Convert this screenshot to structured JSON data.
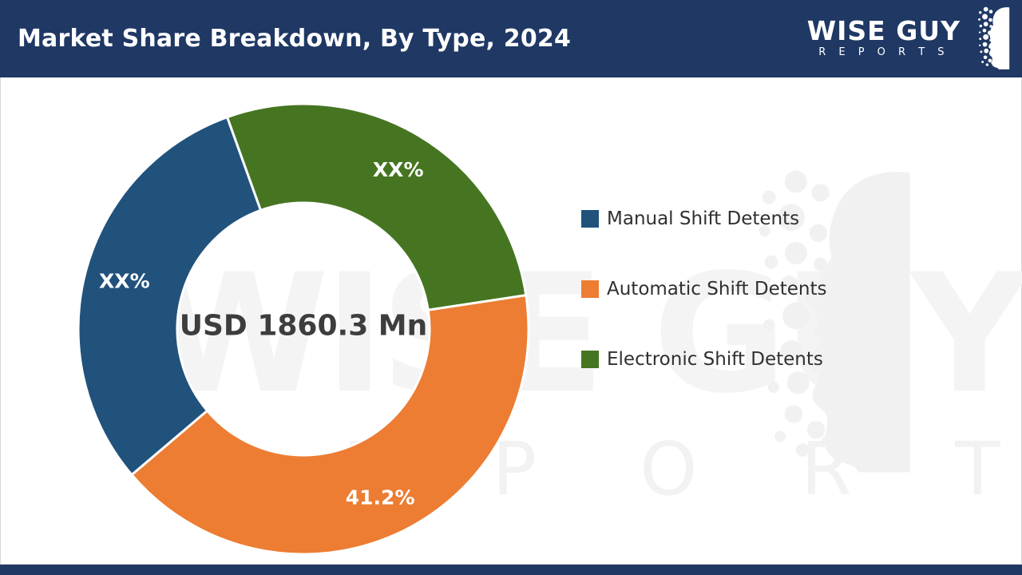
{
  "header": {
    "title": "Market Share Breakdown, By Type, 2024",
    "logo": {
      "line1": "WISE GUY",
      "line2": "R E P O R T S"
    }
  },
  "colors": {
    "header_bg": "#1f3864",
    "footer_bg": "#1f3864",
    "manual_blue": "#20527c",
    "automatic_orange": "#ec7d33",
    "electronic_green": "#467521",
    "center_text": "#3d3d3d",
    "watermark_gray": "#f3f3f3"
  },
  "chart_data": {
    "type": "pie",
    "subtype": "donut",
    "title": "Market Share Breakdown, By Type, 2024",
    "center_label": "USD 1860.3 Mn",
    "units": "percent of USD 1860.3 Mn",
    "start_angle_deg": -19.8,
    "direction": "clockwise",
    "legend_position": "right",
    "segments": [
      {
        "id": "electronic",
        "label": "Electronic Shift Detents",
        "value_pct": 28.1,
        "display_label": "XX%",
        "color": "#467521"
      },
      {
        "id": "automatic",
        "label": "Automatic Shift Detents",
        "value_pct": 41.2,
        "display_label": "41.2%",
        "color": "#ec7d33"
      },
      {
        "id": "manual",
        "label": "Manual Shift Detents",
        "value_pct": 30.7,
        "display_label": "XX%",
        "color": "#20527c"
      }
    ]
  },
  "legend": {
    "items": [
      {
        "label": "Manual Shift Detents",
        "color": "#20527c"
      },
      {
        "label": "Automatic Shift Detents",
        "color": "#ec7d33"
      },
      {
        "label": "Electronic Shift Detents",
        "color": "#467521"
      }
    ]
  },
  "watermark": {
    "line1": "WISE GUY",
    "line2": "R E P O R T S"
  }
}
